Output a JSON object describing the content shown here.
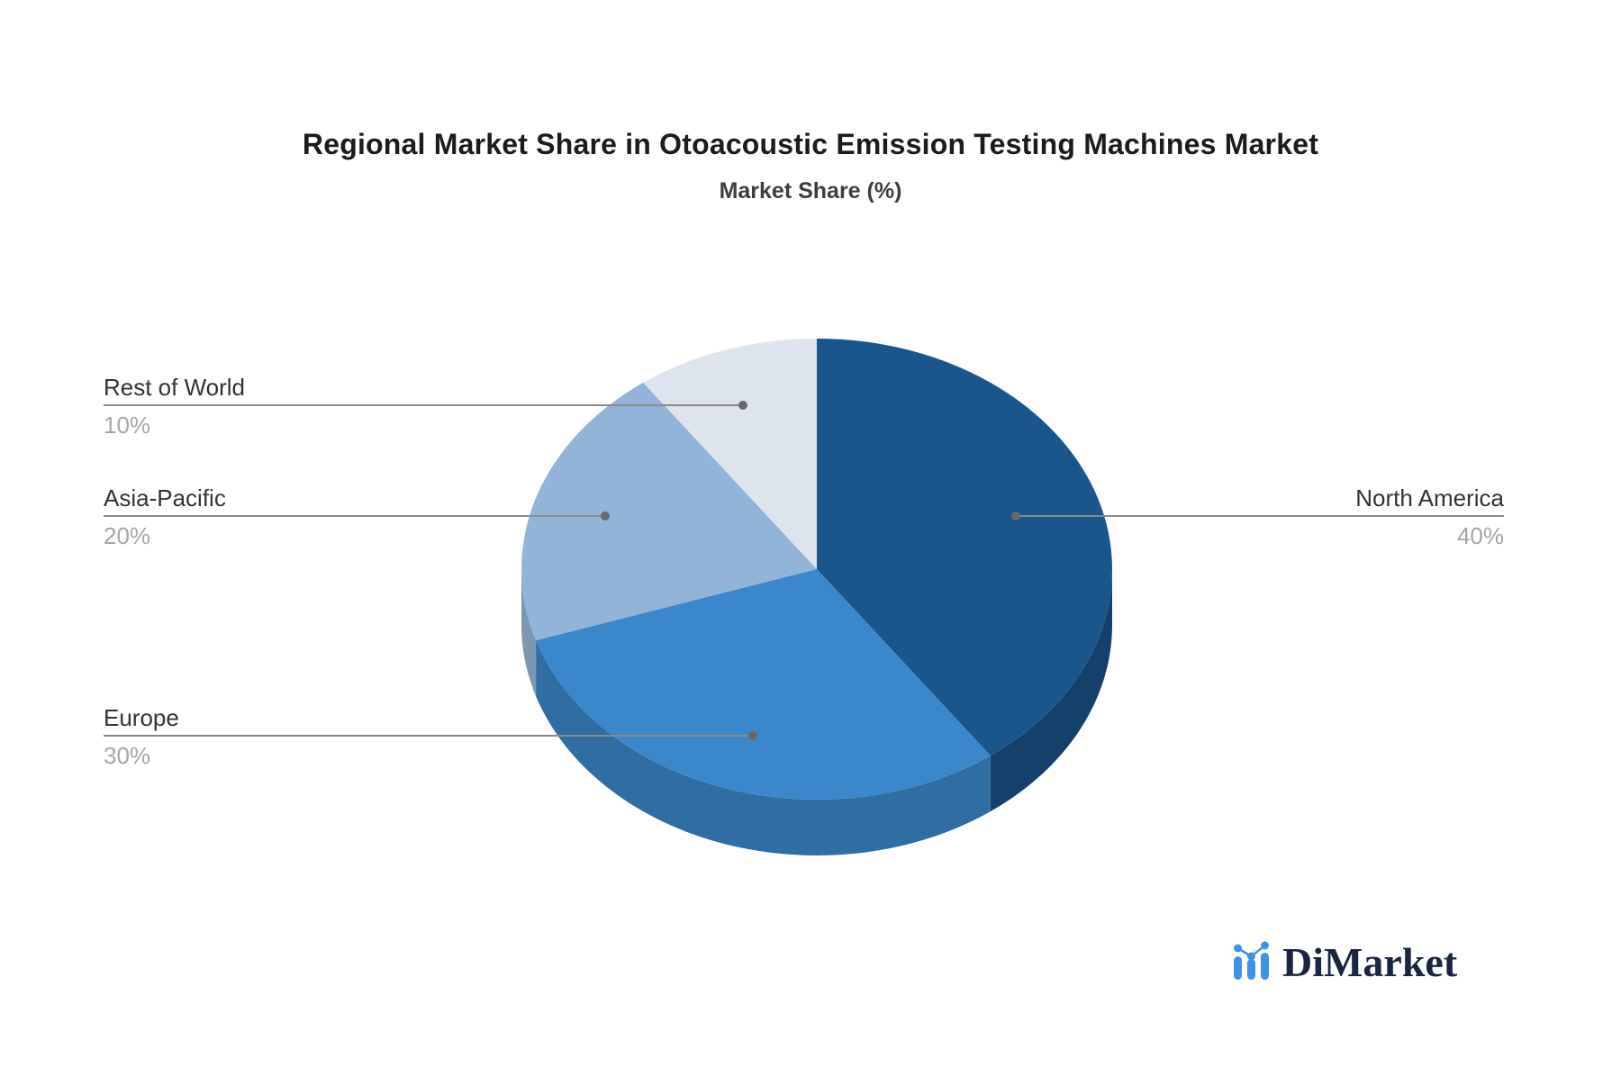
{
  "header": {
    "title": "Regional Market Share in Otoacoustic Emission Testing Machines Market",
    "subtitle": "Market Share (%)"
  },
  "chart_data": {
    "type": "pie",
    "title": "Regional Market Share in Otoacoustic Emission Testing Machines Market",
    "subtitle": "Market Share (%)",
    "unit": "%",
    "style": "3d-pie",
    "start_angle_deg": 0,
    "direction": "clockwise",
    "legend_position": "callout-labels",
    "slices": [
      {
        "label": "North America",
        "value": 40,
        "display": "40%",
        "color": "#1A568C",
        "side_color": "#15406B"
      },
      {
        "label": "Europe",
        "value": 30,
        "display": "30%",
        "color": "#3A88CB",
        "side_color": "#2F6DA3"
      },
      {
        "label": "Asia-Pacific",
        "value": 20,
        "display": "20%",
        "color": "#92B4D8",
        "side_color": "#7E97B1"
      },
      {
        "label": "Rest of World",
        "value": 10,
        "display": "10%",
        "color": "#DEE4ED",
        "side_color": "#B9C4D4"
      }
    ]
  },
  "branding": {
    "logo_text": "DiMarket"
  },
  "colors": {
    "background": "#FFFFFF",
    "title_text": "#1C1C1C",
    "subtitle_text": "#3E3E3E",
    "label_text": "#333333",
    "percent_text": "#A6A6A6",
    "leader_line": "#8A8A8A",
    "leader_dot": "#686868",
    "logo_blue": "#4191E8",
    "logo_navy": "#1A2540"
  }
}
